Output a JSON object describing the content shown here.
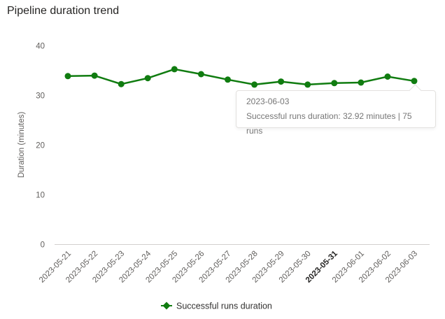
{
  "title": "Pipeline duration trend",
  "colors": {
    "line": "#107C10",
    "axis_text": "#605e5c",
    "axis_line": "#d2d0ce",
    "title_text": "#252423",
    "legend_text": "#323130",
    "tooltip_text": "#767676",
    "tooltip_border": "#e3e1df"
  },
  "chart_data": {
    "type": "line",
    "title": "Pipeline duration trend",
    "xlabel": "",
    "ylabel": "Duration (minutes)",
    "ylim": [
      0,
      40
    ],
    "yticks": [
      0,
      10,
      20,
      30,
      40
    ],
    "grid": false,
    "legend_position": "bottom",
    "categories": [
      "2023-05-21",
      "2023-05-22",
      "2023-05-23",
      "2023-05-24",
      "2023-05-25",
      "2023-05-26",
      "2023-05-27",
      "2023-05-28",
      "2023-05-29",
      "2023-05-30",
      "2023-05-31",
      "2023-06-01",
      "2023-06-02",
      "2023-06-03"
    ],
    "emphasized_category": "2023-05-31",
    "series": [
      {
        "name": "Successful runs duration",
        "color": "#107C10",
        "values": [
          33.9,
          34.0,
          32.3,
          33.5,
          35.3,
          34.3,
          33.2,
          32.2,
          32.8,
          32.2,
          32.5,
          32.6,
          33.8,
          32.92
        ]
      }
    ]
  },
  "legend": {
    "label": "Successful runs duration"
  },
  "tooltip": {
    "date": "2023-06-03",
    "detail": "Successful runs duration: 32.92 minutes | 75 runs"
  }
}
